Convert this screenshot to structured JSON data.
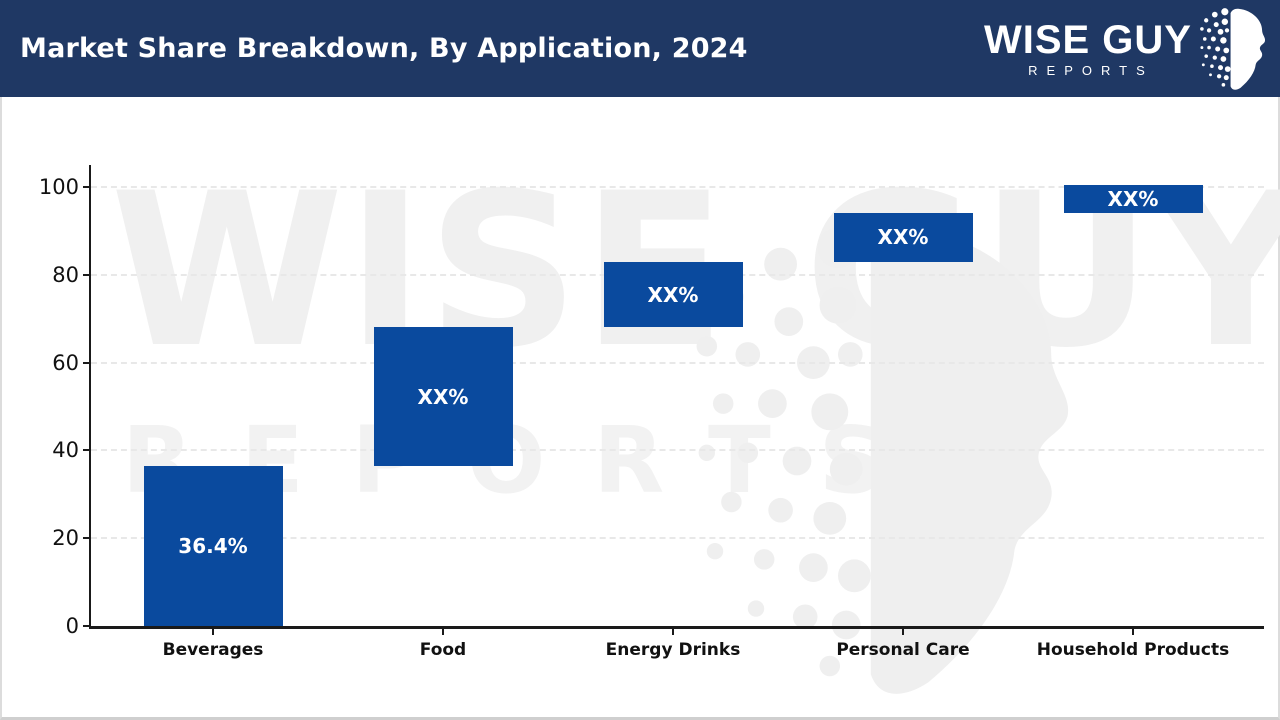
{
  "header": {
    "title": "Market Share Breakdown, By Application, 2024",
    "logo": {
      "primary": "WISE GUY",
      "secondary": "REPORTS"
    }
  },
  "watermark": {
    "primary": "WISE GUY",
    "secondary": "REPORTS"
  },
  "colors": {
    "header_bg": "#1f3864",
    "bar": "#0a4a9e",
    "bar_label": "#ffffff",
    "axis": "#1a1a1a",
    "gridline": "#e8e8e8",
    "watermark": "#f0f0f0"
  },
  "chart_data": {
    "type": "bar",
    "subtype": "waterfall-stacked-to-100",
    "title": "Market Share Breakdown, By Application, 2024",
    "categories": [
      "Beverages",
      "Food",
      "Energy Drinks",
      "Personal Care",
      "Household Products"
    ],
    "segments": [
      {
        "category": "Beverages",
        "start": 0,
        "end": 36.4,
        "label": "36.4%"
      },
      {
        "category": "Food",
        "start": 36.4,
        "end": 68,
        "label": "XX%"
      },
      {
        "category": "Energy Drinks",
        "start": 68,
        "end": 83,
        "label": "XX%"
      },
      {
        "category": "Personal Care",
        "start": 83,
        "end": 94,
        "label": "XX%"
      },
      {
        "category": "Household Products",
        "start": 94,
        "end": 100.4,
        "label": "XX%"
      }
    ],
    "yticks": [
      0,
      20,
      40,
      60,
      80,
      100
    ],
    "ylim": [
      0,
      105
    ],
    "xlabel": "",
    "ylabel": "",
    "grid": "horizontal-dashed",
    "legend": "none"
  }
}
